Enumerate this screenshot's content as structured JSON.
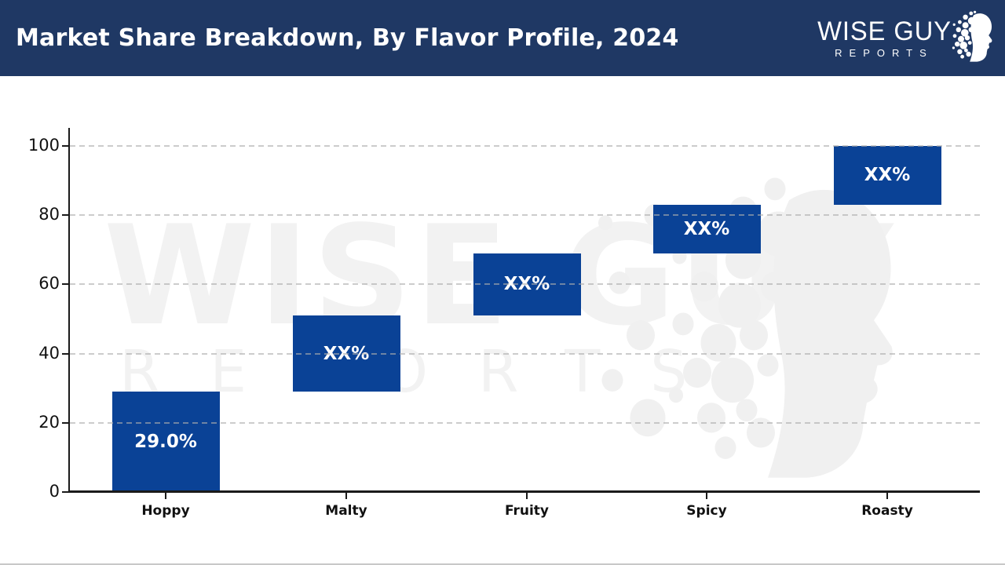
{
  "header": {
    "title": "Market Share Breakdown, By Flavor Profile, 2024",
    "logo": {
      "line1": "WISE GUY",
      "line2": "REPORTS"
    }
  },
  "watermark": {
    "line1": "WISE GUY",
    "line2": "REPORTS"
  },
  "colors": {
    "header_bg": "#1f3864",
    "bar": "#0a4296",
    "bar_label": "#ffffff",
    "axis": "#1a1a1a",
    "gridline": "#d6d6d6",
    "watermark": "#f2f2f2"
  },
  "chart_data": {
    "type": "bar",
    "subtype": "waterfall",
    "title": "Market Share Breakdown, By Flavor Profile, 2024",
    "categories": [
      "Hoppy",
      "Malty",
      "Fruity",
      "Spicy",
      "Roasty"
    ],
    "segments": [
      {
        "category": "Hoppy",
        "start": 0,
        "end": 29,
        "label": "29.0%"
      },
      {
        "category": "Malty",
        "start": 29,
        "end": 51,
        "label": "XX%"
      },
      {
        "category": "Fruity",
        "start": 51,
        "end": 69,
        "label": "XX%"
      },
      {
        "category": "Spicy",
        "start": 69,
        "end": 83,
        "label": "XX%"
      },
      {
        "category": "Roasty",
        "start": 83,
        "end": 100,
        "label": "XX%"
      }
    ],
    "ylim": [
      0,
      100
    ],
    "yticks": [
      0,
      20,
      40,
      60,
      80,
      100
    ],
    "xlabel": "",
    "ylabel": "",
    "grid": "horizontal-dashed",
    "legend": null
  }
}
